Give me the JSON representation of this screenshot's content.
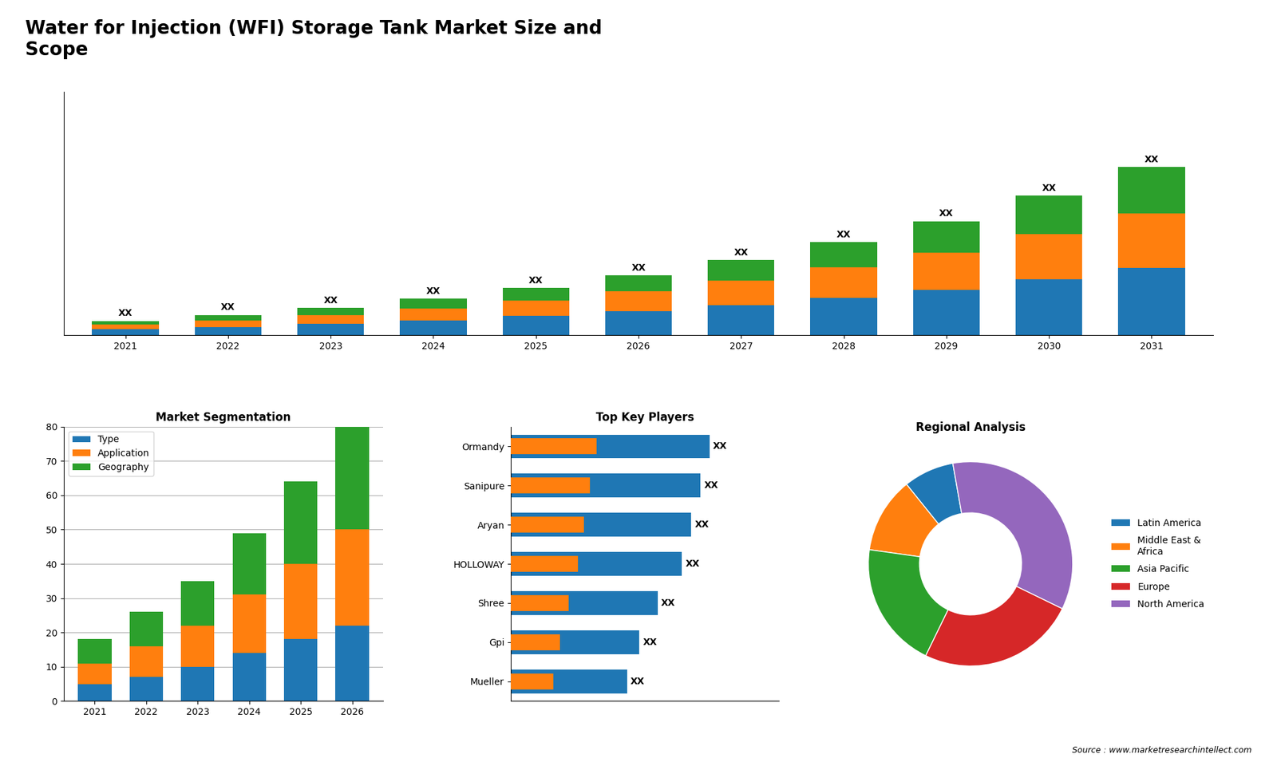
{
  "title": "Water for Injection (WFI) Storage Tank Market Size and\nScope",
  "annotations": [
    "Source : www.marketresearchintellect.com"
  ],
  "chart_data": [
    {
      "type": "bar",
      "stacked": true,
      "categories": [
        "2021",
        "2022",
        "2023",
        "2024",
        "2025",
        "2026",
        "2027",
        "2028",
        "2029",
        "2030",
        "2031"
      ],
      "series": [
        {
          "values": [
            1.0,
            1.4,
            1.9,
            2.5,
            3.2,
            4.0,
            5.0,
            6.2,
            7.6,
            9.3,
            11.2
          ]
        },
        {
          "values": [
            0.8,
            1.1,
            1.5,
            2.0,
            2.6,
            3.3,
            4.1,
            5.1,
            6.2,
            7.6,
            9.1
          ]
        },
        {
          "values": [
            0.6,
            0.9,
            1.2,
            1.6,
            2.1,
            2.7,
            3.4,
            4.2,
            5.2,
            6.4,
            7.7
          ],
          "value_labels": [
            "XX",
            "XX",
            "XX",
            "XX",
            "XX",
            "XX",
            "XX",
            "XX",
            "XX",
            "XX",
            "XX"
          ]
        }
      ],
      "data_labels": true,
      "ylim": [
        0,
        40.6
      ],
      "tick_labels": "x"
    },
    {
      "type": "bar",
      "title": "Market Segmentation",
      "stacked": true,
      "categories": [
        "2021",
        "2022",
        "2023",
        "2024",
        "2025",
        "2026"
      ],
      "series": [
        {
          "name": "Type",
          "values": [
            5,
            7,
            10,
            14,
            18,
            22
          ]
        },
        {
          "name": "Application",
          "values": [
            6,
            9,
            12,
            17,
            22,
            28
          ]
        },
        {
          "name": "Geography",
          "values": [
            7,
            10,
            13,
            18,
            24,
            30
          ]
        }
      ],
      "ylim": [
        0,
        80
      ],
      "yticks": [
        0,
        10,
        20,
        30,
        40,
        50,
        60,
        70,
        80
      ],
      "grid": true,
      "legend": "upper left"
    },
    {
      "type": "bar",
      "title": "Top Key Players",
      "orientation": "horizontal",
      "categories": [
        "Ormandy",
        "Sanipure",
        "Aryan",
        "HOLLOWAY",
        "Shree",
        "Gpi",
        "Mueller"
      ],
      "series": [
        {
          "values": [
            6.5,
            6.2,
            5.9,
            5.6,
            4.8,
            4.2,
            3.8
          ],
          "value_labels": [
            "XX",
            "XX",
            "XX",
            "XX",
            "XX",
            "XX",
            "XX"
          ]
        },
        {
          "values": [
            2.8,
            2.6,
            2.4,
            2.2,
            1.9,
            1.6,
            1.4
          ]
        }
      ],
      "data_labels": true,
      "xlim": [
        0,
        8.775
      ],
      "tick_labels": "y"
    },
    {
      "type": "pie",
      "title": "Regional Analysis",
      "categories": [
        "Latin America",
        "Middle East &\nAfrica",
        "Asia Pacific",
        "Europe",
        "North America"
      ],
      "values": [
        8,
        12,
        20,
        25,
        35
      ],
      "legend": "center left"
    }
  ]
}
